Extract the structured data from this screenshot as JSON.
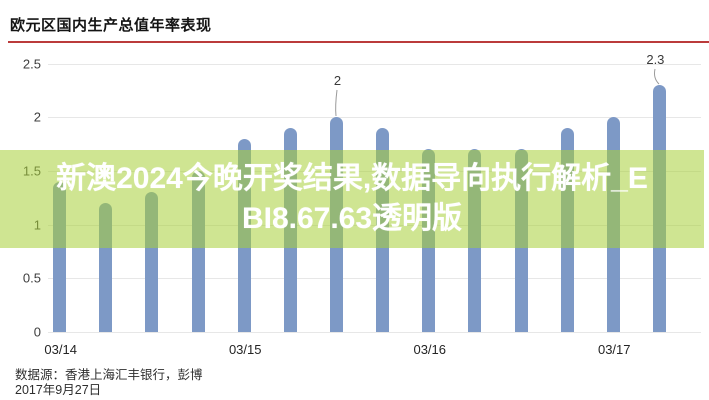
{
  "window": {
    "title": "欧元区国内生产总值年率表现"
  },
  "chart_data": {
    "type": "bar",
    "title": "欧元区国内生产总值年率表现",
    "values": [
      1.4,
      1.2,
      1.3,
      1.5,
      1.8,
      1.9,
      2.0,
      1.9,
      1.7,
      1.7,
      1.7,
      1.9,
      2.0,
      2.3
    ],
    "x_tick_labels": [
      "03/14",
      "03/15",
      "03/16",
      "03/17"
    ],
    "x_tick_bar_indices": [
      0,
      4,
      8,
      12
    ],
    "yticks": [
      "0",
      "0.5",
      "1",
      "1.5",
      "2",
      "2.5"
    ],
    "ylim": [
      0,
      2.5
    ],
    "grid": "horizontal",
    "legend": "none",
    "bar_color": "#7d99c6",
    "gridline_color": "#e7e7e7",
    "annotations": [
      {
        "bar_index": 6,
        "label": "2",
        "gap": 28,
        "dx": 1
      },
      {
        "bar_index": 13,
        "label": "2.3",
        "gap": 17,
        "dx": -4
      }
    ]
  },
  "watermark": {
    "line1": "新澳2024今晚开奖结果,数据导向执行解析_E",
    "line2": "BI8.67.63透明版",
    "band_color": "rgba(167,207,57,0.55)",
    "text_color": "#ffffff"
  },
  "footer": {
    "source": "数据源：香港上海汇丰银行，彭博",
    "date": "2017年9月27日"
  },
  "accent_colors": {
    "title_rule_red": "#bb3b3b",
    "bar_blue": "#7d99c6",
    "band_green_over_white": "#cfe593",
    "band_green_over_bar": "#94ba77"
  }
}
